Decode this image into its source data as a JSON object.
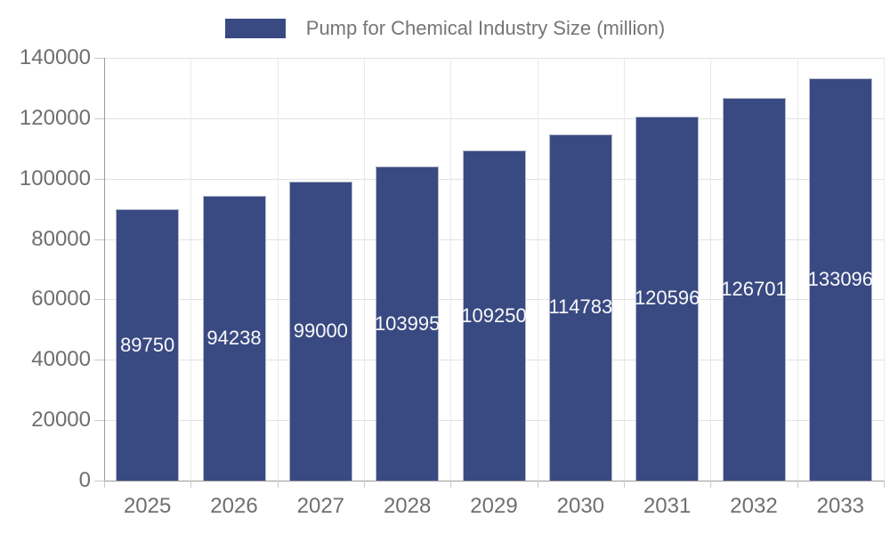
{
  "legend": {
    "label": "Pump for Chemical Industry Size (million)"
  },
  "colors": {
    "bar": "#394A82",
    "bar_edge": "#B3B9CC",
    "grid_horizontal": "#E2E2E2",
    "grid_vertical": "#E9E9E9",
    "axis_line": "#9A9A9A",
    "tick_mark": "#C9C9C9",
    "tick_label": "#6F6F6F",
    "legend_text": "#757575",
    "value_label": "#FAFAFA",
    "background": "#FFFFFF"
  },
  "chart_data": {
    "type": "bar",
    "title": "",
    "categories": [
      "2025",
      "2026",
      "2027",
      "2028",
      "2029",
      "2030",
      "2031",
      "2032",
      "2033"
    ],
    "values": [
      89750,
      94238,
      99000,
      103995,
      109250,
      114783,
      120596,
      126701,
      133096
    ],
    "series": [
      {
        "name": "Pump for Chemical Industry Size (million)",
        "values": [
          89750,
          94238,
          99000,
          103995,
          109250,
          114783,
          120596,
          126701,
          133096
        ]
      }
    ],
    "xlabel": "",
    "ylabel": "",
    "ylim": [
      0,
      140000
    ],
    "yticks": [
      0,
      20000,
      40000,
      60000,
      80000,
      100000,
      120000,
      140000
    ],
    "grid": true,
    "legend_position": "top-center",
    "value_labels": "inside-center"
  }
}
